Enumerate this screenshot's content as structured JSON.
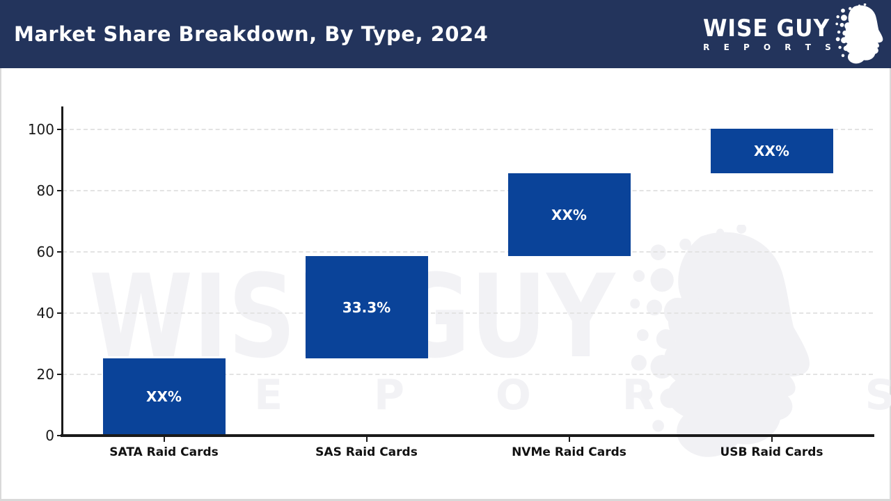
{
  "header": {
    "title": "Market Share Breakdown, By Type, 2024",
    "logo": {
      "line1": "WISE GUY",
      "line2": "R E P O R T S"
    }
  },
  "watermark": {
    "line1": "WISE GUY",
    "line2": "R E P O R T S"
  },
  "colors": {
    "header_bg": "#23345c",
    "bar_blue": "#0a4399",
    "gridline": "#e3e3e3",
    "axis": "#1a1a1a",
    "watermark_gray": "#f2f2f5"
  },
  "chart_data": {
    "type": "bar",
    "subtype": "waterfall",
    "title": "Market Share Breakdown, By Type, 2024",
    "categories": [
      "SATA Raid Cards",
      "SAS Raid Cards",
      "NVMe Raid Cards",
      "USB Raid Cards"
    ],
    "segments": [
      {
        "category": "SATA Raid Cards",
        "start": 0,
        "end": 25,
        "label": "XX%"
      },
      {
        "category": "SAS Raid Cards",
        "start": 25,
        "end": 58.3,
        "label": "33.3%"
      },
      {
        "category": "NVMe Raid Cards",
        "start": 58.3,
        "end": 85.5,
        "label": "XX%"
      },
      {
        "category": "USB Raid Cards",
        "start": 85.5,
        "end": 100,
        "label": "XX%"
      }
    ],
    "value_labels": [
      "XX%",
      "33.3%",
      "XX%",
      "XX%"
    ],
    "xlabel": "",
    "ylabel": "",
    "yticks": [
      0,
      20,
      40,
      60,
      80,
      100
    ],
    "ylim": [
      0,
      107
    ],
    "grid": {
      "axis": "y",
      "style": "dashed",
      "position": "behind-bars"
    },
    "legend": "none",
    "bar_color": "#0a4399"
  }
}
